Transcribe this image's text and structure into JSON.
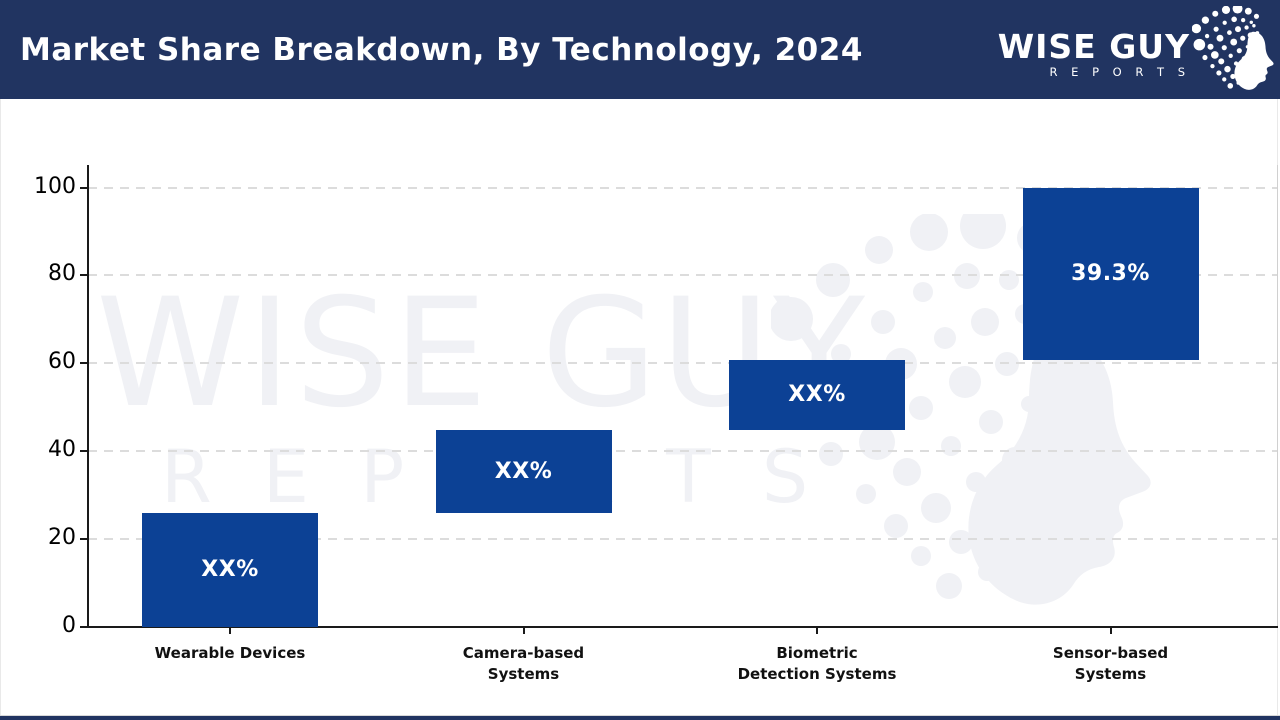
{
  "header": {
    "title": "Market Share Breakdown, By Technology, 2024",
    "logo": {
      "name": "WISE GUY",
      "tagline": "R E P O R T S"
    }
  },
  "watermark": {
    "line1": "WISE GUY",
    "line2": "R E P O R T S"
  },
  "colors": {
    "header_navy": "#213461",
    "bar_blue": "#0c4195",
    "grid_gray": "#dcdcdc",
    "axis_black": "#1a1a1a",
    "watermark_gray": "#f0f1f5",
    "bar_label_white": "#ffffff"
  },
  "chart_data": {
    "type": "bar",
    "subtype": "floating-waterfall",
    "title": "Market Share Breakdown, By Technology, 2024",
    "xlabel": "",
    "ylabel": "",
    "ylim": [
      0,
      105
    ],
    "yticks": [
      0,
      20,
      40,
      60,
      80,
      100
    ],
    "grid": "horizontal-dashed",
    "legend": "none",
    "categories": [
      "Wearable Devices",
      "Camera-based Systems",
      "Biometric Detection Systems",
      "Sensor-based Systems"
    ],
    "category_label_lines": [
      [
        "Wearable Devices"
      ],
      [
        "Camera-based",
        "Systems"
      ],
      [
        "Biometric",
        "Detection Systems"
      ],
      [
        "Sensor-based",
        "Systems"
      ]
    ],
    "bars": [
      {
        "category": "Wearable Devices",
        "start": 0,
        "end": 26,
        "label": "XX%"
      },
      {
        "category": "Camera-based Systems",
        "start": 26,
        "end": 44.9,
        "label": "XX%"
      },
      {
        "category": "Biometric Detection Systems",
        "start": 44.9,
        "end": 60.7,
        "label": "XX%"
      },
      {
        "category": "Sensor-based Systems",
        "start": 60.7,
        "end": 100,
        "label": "39.3%",
        "value": 39.3
      }
    ]
  }
}
